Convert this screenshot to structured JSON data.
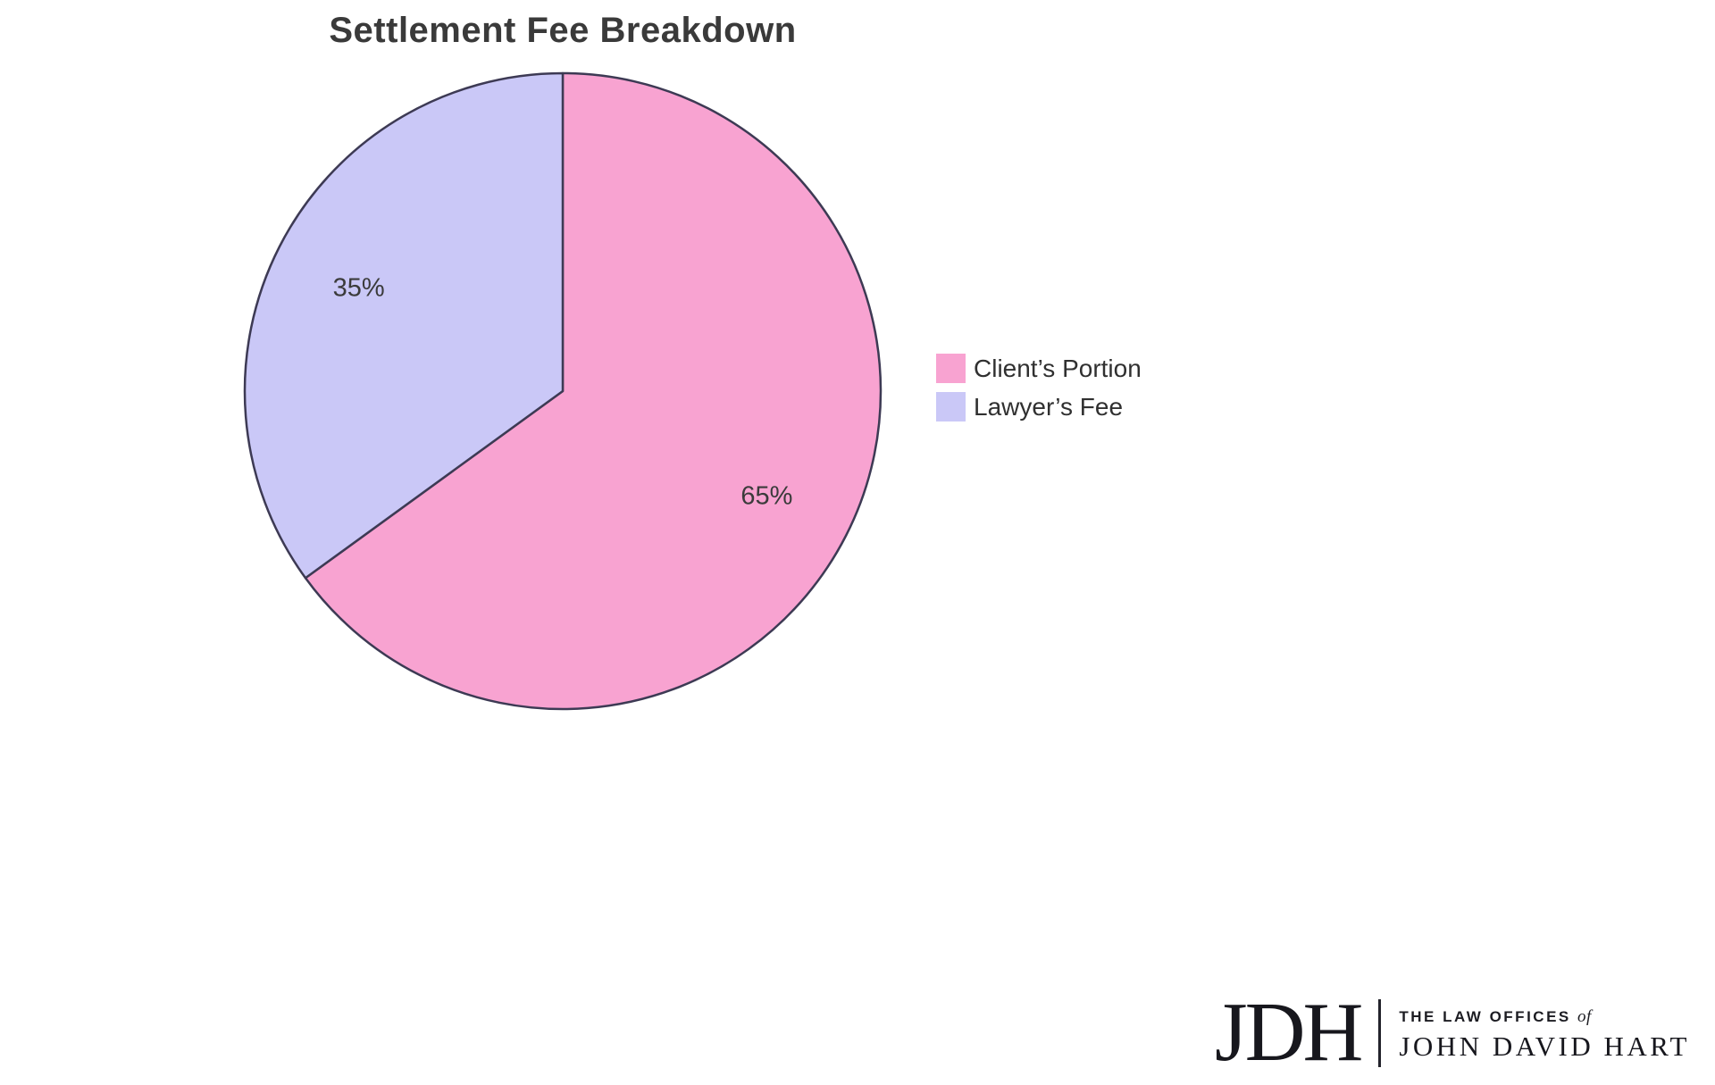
{
  "chart_data": {
    "type": "pie",
    "title": "Settlement Fee Breakdown",
    "slices": [
      {
        "label": "Client’s Portion",
        "value": 65,
        "pct_label": "65%",
        "color": "#F8A3D1"
      },
      {
        "label": "Lawyer’s Fee",
        "value": 35,
        "pct_label": "35%",
        "color": "#CAC8F7"
      }
    ],
    "start_angle_deg": -90,
    "direction": "clockwise",
    "stroke_color": "#3d3a54",
    "stroke_width": 2.5,
    "label_radius_ratio": 0.72,
    "legend_position": "right",
    "background": "#ffffff"
  },
  "legend": {
    "items": [
      {
        "label": "Client’s Portion",
        "color": "#F8A3D1"
      },
      {
        "label": "Lawyer’s Fee",
        "color": "#CAC8F7"
      }
    ]
  },
  "branding": {
    "monogram": "JDH",
    "firm_line1": "THE LAW OFFICES",
    "firm_line1_suffix": "of",
    "firm_line2": "JOHN DAVID HART"
  },
  "colors": {
    "title_text": "#3a3a3a",
    "label_text": "#3b3b3b",
    "background": "#ffffff"
  }
}
